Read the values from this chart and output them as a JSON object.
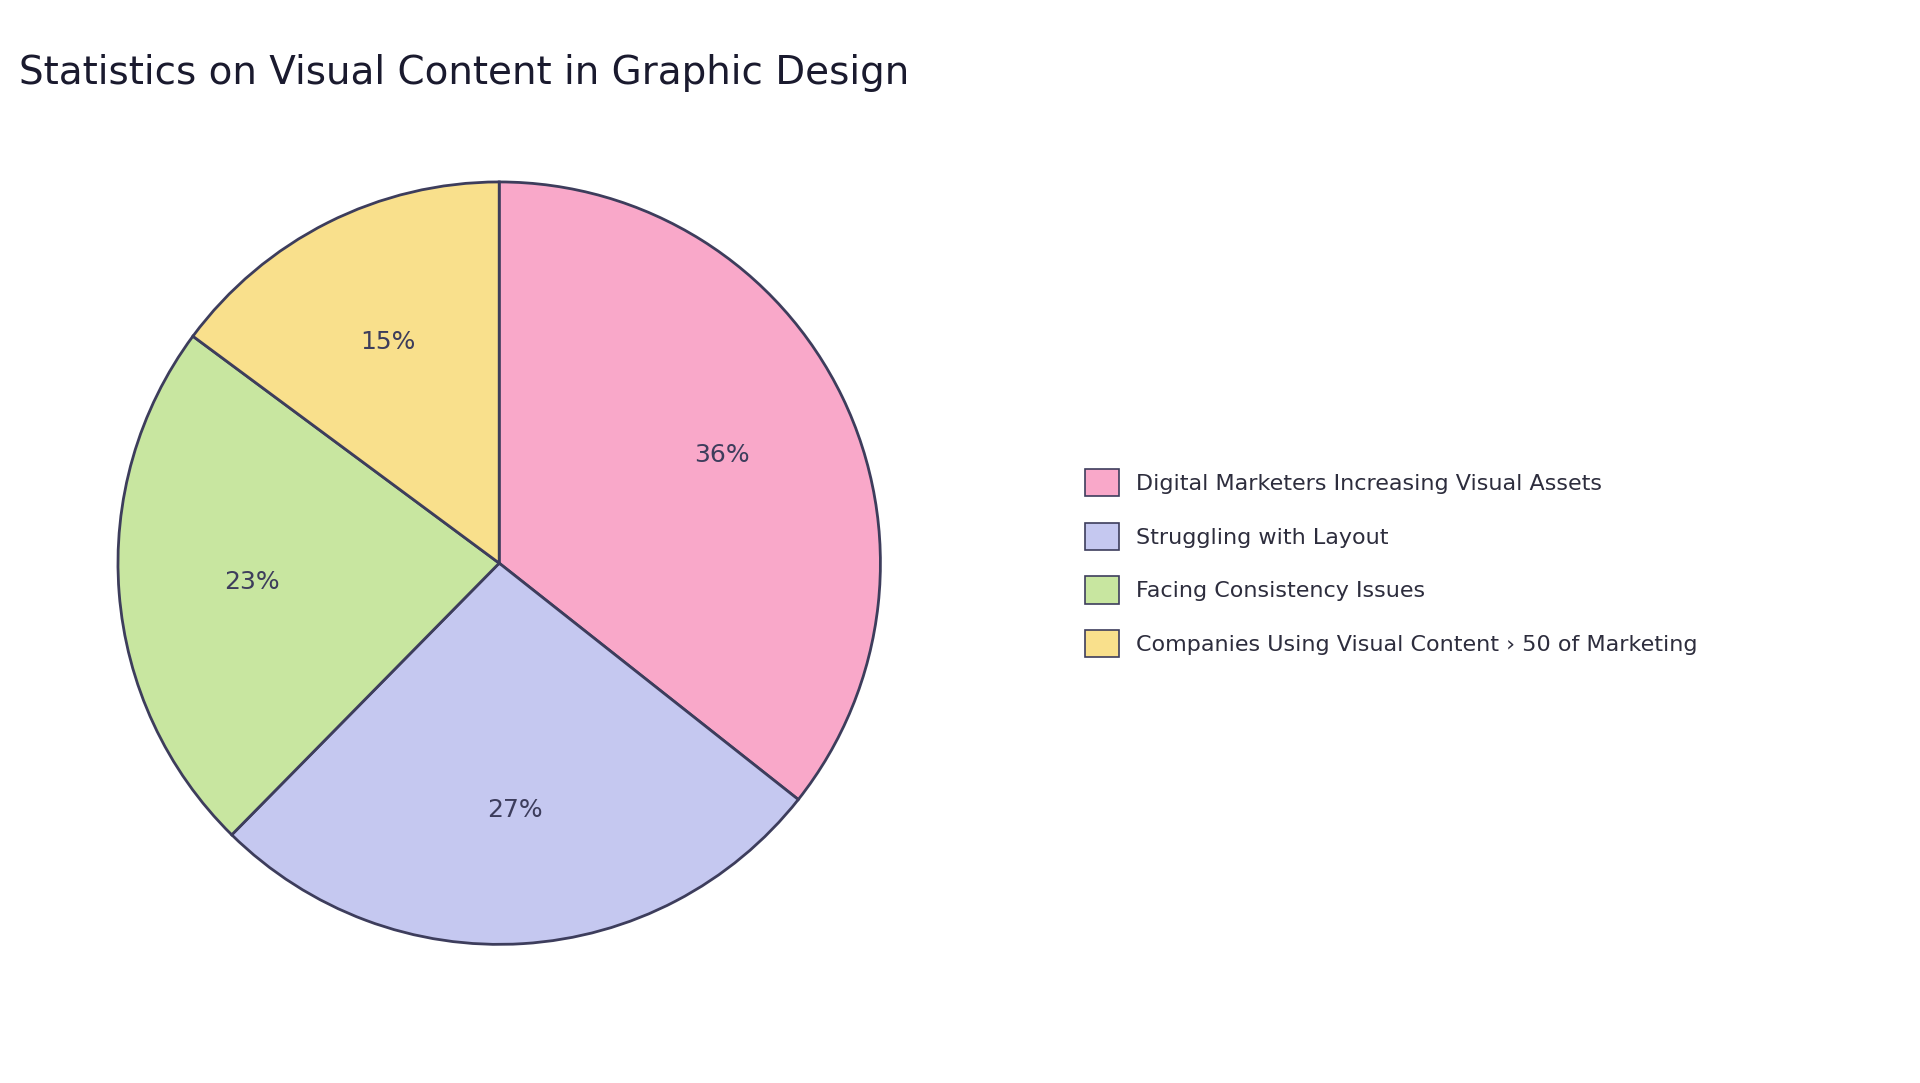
{
  "title": "Statistics on Visual Content in Graphic Design",
  "slices": [
    36,
    27,
    23,
    15
  ],
  "legend_labels": [
    "Digital Marketers Increasing Visual Assets",
    "Struggling with Layout",
    "Facing Consistency Issues",
    "Companies Using Visual Content › 50 of Marketing"
  ],
  "colors": [
    "#F9A8C9",
    "#C5C8F0",
    "#C8E6A0",
    "#F9E08C"
  ],
  "edge_color": "#3d3d5c",
  "background_color": "#ffffff",
  "title_fontsize": 28,
  "autopct_fontsize": 18,
  "legend_fontsize": 16,
  "startangle": 90,
  "pctdistance": 0.65
}
